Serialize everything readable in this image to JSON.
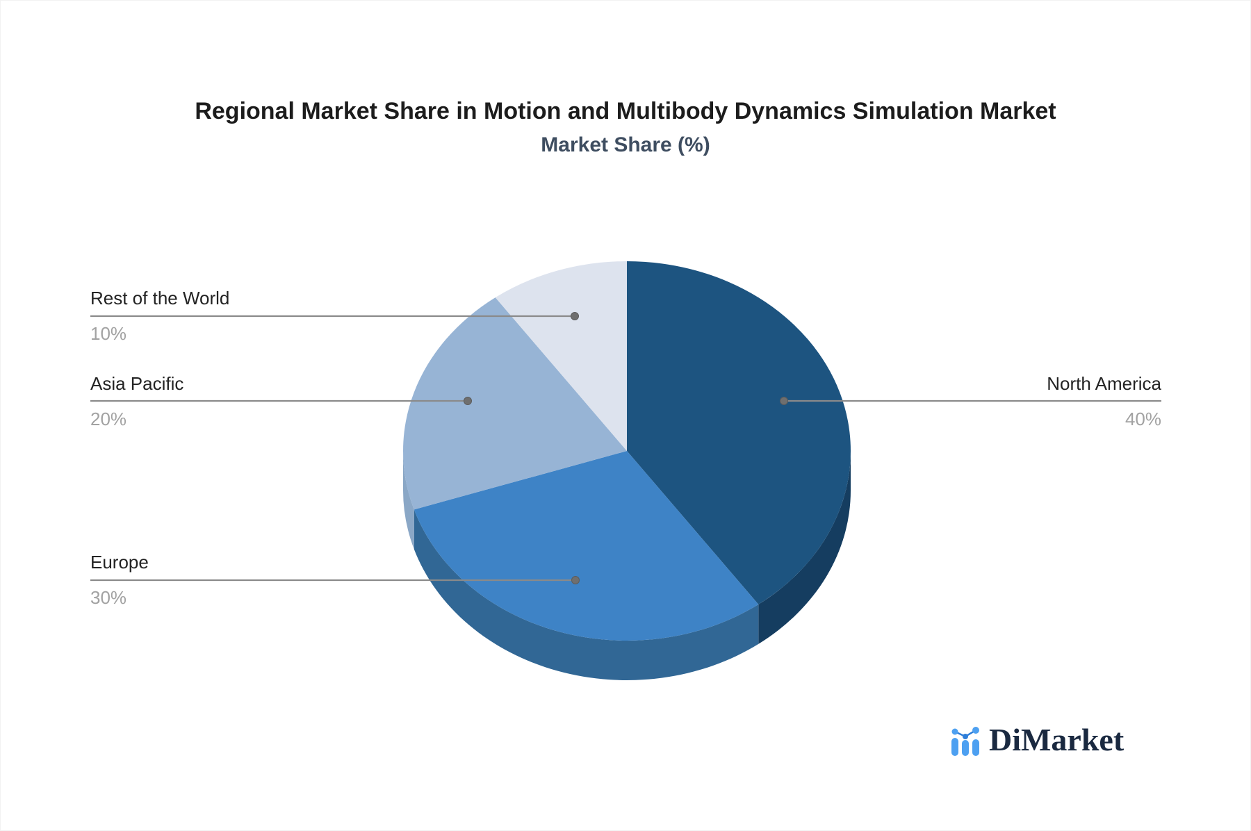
{
  "header": {
    "title": "Regional Market Share in Motion and Multibody Dynamics Simulation Market",
    "subtitle": "Market Share (%)"
  },
  "chart_data": {
    "type": "pie",
    "style": "pie3d",
    "title": "Regional Market Share in Motion and Multibody Dynamics Simulation Market",
    "subtitle": "Market Share (%)",
    "categories": [
      "North America",
      "Europe",
      "Asia Pacific",
      "Rest of the World"
    ],
    "values": [
      40,
      30,
      20,
      10
    ],
    "unit": "%",
    "start_angle_deg": 0,
    "direction": "clockwise",
    "legend_position": "none",
    "data_labels": "callout",
    "labels": [
      {
        "name": "North America",
        "pct": "40%",
        "side": "right"
      },
      {
        "name": "Europe",
        "pct": "30%",
        "side": "left"
      },
      {
        "name": "Asia Pacific",
        "pct": "20%",
        "side": "left"
      },
      {
        "name": "Rest of the World",
        "pct": "10%",
        "side": "left"
      }
    ],
    "colors": {
      "top": [
        "#1d5480",
        "#3e83c6",
        "#97b4d5",
        "#dde3ee"
      ],
      "side": [
        "#153d60",
        "#316795",
        "#8aa7c6",
        null
      ],
      "leader_line": "#8a8a8a",
      "dot": "#6f6f6f",
      "name_text": "#232323",
      "pct_text": "#a2a2a2"
    }
  },
  "logo": {
    "text": "DiMarket",
    "bar_color": "#4da0f1",
    "accent_color": "#2e7ed9",
    "text_color": "#1a2940"
  },
  "background": "#ffffff"
}
